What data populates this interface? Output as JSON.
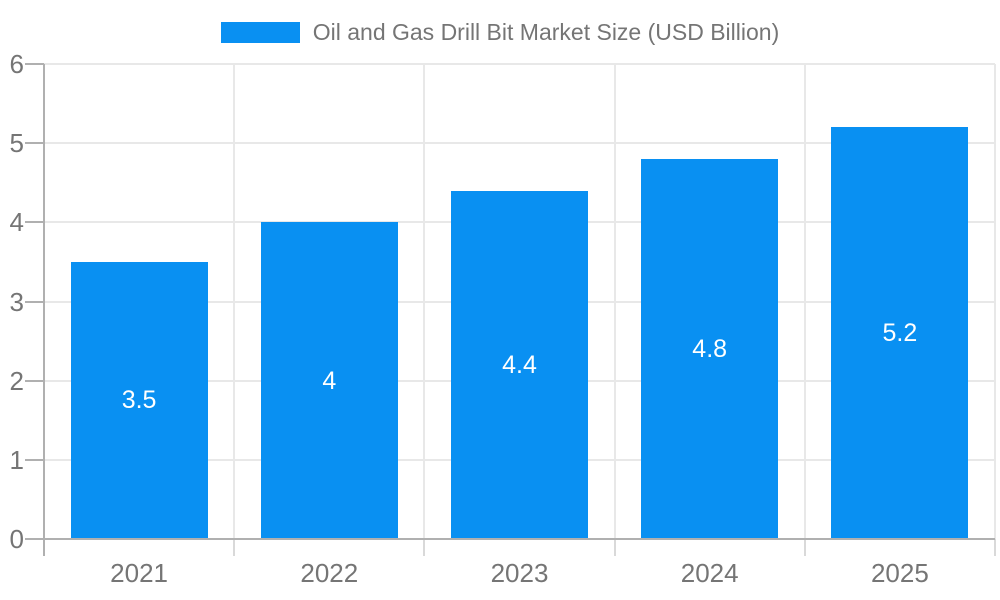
{
  "legend": {
    "label": "Oil and Gas Drill Bit Market Size (USD Billion)"
  },
  "colors": {
    "bar": "#0990F2",
    "axis": "#b0b0b0",
    "gridline": "#e8e8e8",
    "tick_below_axis": "#d9d9d9",
    "tick_label": "#757575",
    "legend_text": "#757575",
    "bar_value_label": "#ffffff",
    "background": "#ffffff"
  },
  "chart_data": {
    "type": "bar",
    "title": "Oil and Gas Drill Bit Market Size (USD Billion)",
    "categories": [
      "2021",
      "2022",
      "2023",
      "2024",
      "2025"
    ],
    "values": [
      3.5,
      4,
      4.4,
      4.8,
      5.2
    ],
    "bar_value_labels": [
      "3.5",
      "4",
      "4.4",
      "4.8",
      "5.2"
    ],
    "series": [
      {
        "name": "Oil and Gas Drill Bit Market Size (USD Billion)",
        "values": [
          3.5,
          4,
          4.4,
          4.8,
          5.2
        ]
      }
    ],
    "xlabel": "",
    "ylabel": "",
    "ylim": [
      0,
      6
    ],
    "yticks": [
      0,
      1,
      2,
      3,
      4,
      5,
      6
    ],
    "grid": true,
    "legend_position": "top-center",
    "value_labels_inside_bars": true
  }
}
